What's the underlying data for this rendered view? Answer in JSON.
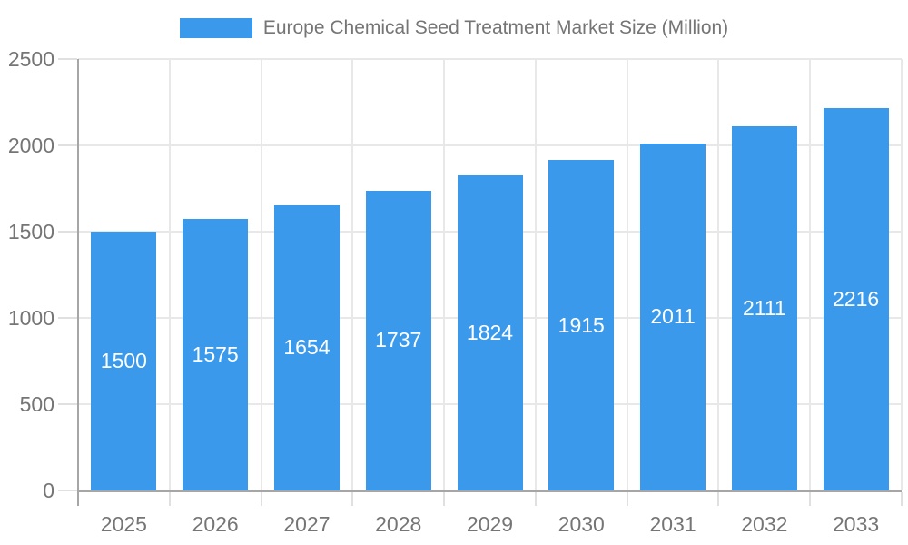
{
  "legend": {
    "label": "Europe Chemical Seed Treatment Market Size (Million)"
  },
  "chart_data": {
    "type": "bar",
    "title": "Europe Chemical Seed Treatment Market Size (Million)",
    "categories": [
      "2025",
      "2026",
      "2027",
      "2028",
      "2029",
      "2030",
      "2031",
      "2032",
      "2033"
    ],
    "values": [
      1500,
      1575,
      1654,
      1737,
      1824,
      1915,
      2011,
      2111,
      2216
    ],
    "xlabel": "",
    "ylabel": "",
    "ylim": [
      0,
      2500
    ],
    "yticks": [
      0,
      500,
      1000,
      1500,
      2000,
      2500
    ],
    "bar_color": "#3b99ec",
    "value_label_color": "#ffffff",
    "axis_label_color": "#757575",
    "grid": true,
    "legend_position": "top"
  }
}
